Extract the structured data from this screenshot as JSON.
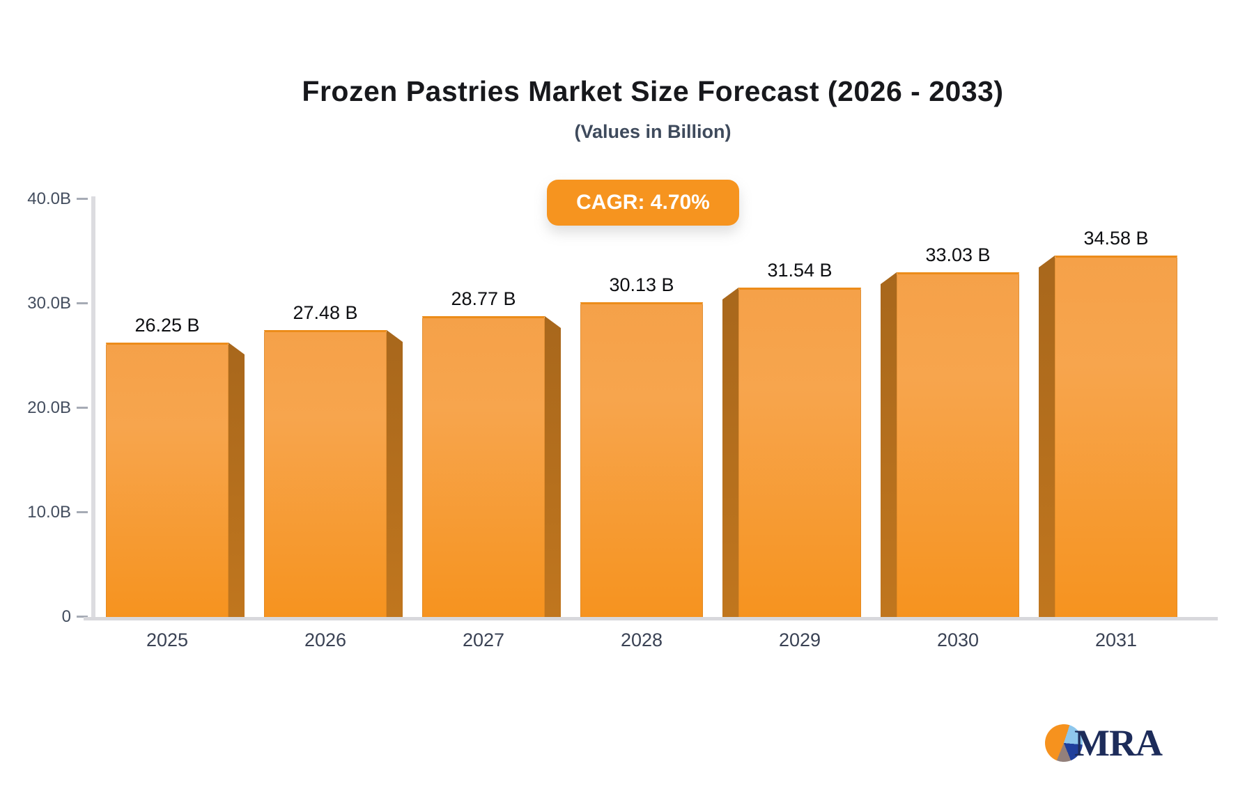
{
  "title": "Frozen Pastries Market Size Forecast (2026 - 2033)",
  "subtitle": "(Values in Billion)",
  "badge": {
    "label": "CAGR: 4.70%",
    "color": "#f6941f",
    "text_color": "#ffffff"
  },
  "chart_data": {
    "type": "bar",
    "title": "Frozen Pastries Market Size Forecast (2026 - 2033)",
    "subtitle": "(Values in Billion)",
    "annotation": "CAGR: 4.70%",
    "categories": [
      "2025",
      "2026",
      "2027",
      "2028",
      "2029",
      "2030",
      "2031"
    ],
    "values": [
      26.25,
      27.48,
      28.77,
      30.13,
      31.54,
      33.03,
      34.58
    ],
    "value_labels": [
      "26.25 B",
      "27.48 B",
      "28.77 B",
      "30.13 B",
      "31.54 B",
      "33.03 B",
      "34.58 B"
    ],
    "unit": "Billion",
    "ylim": [
      0,
      40
    ],
    "y_ticks": [
      {
        "value": 40,
        "label": "40.0B"
      },
      {
        "value": 30,
        "label": "30.0B"
      },
      {
        "value": 20,
        "label": "20.0B"
      },
      {
        "value": 10,
        "label": "10.0B"
      },
      {
        "value": 0,
        "label": "0"
      }
    ],
    "grid": false,
    "legend": false,
    "bar_color_top": "#f5a149",
    "bar_color_bottom": "#f6931f",
    "bar_side_color": "#b06c1c",
    "axis_color": "#d8d8dc",
    "tick_label_color": "#434d5e"
  },
  "logo": {
    "text": "MRA",
    "pie_colors": {
      "orange": "#f6921e",
      "light_blue": "#8ec7ec",
      "dark_blue": "#1f3f9c",
      "taupe": "#93807b"
    },
    "text_color": "#1d2c5a"
  }
}
